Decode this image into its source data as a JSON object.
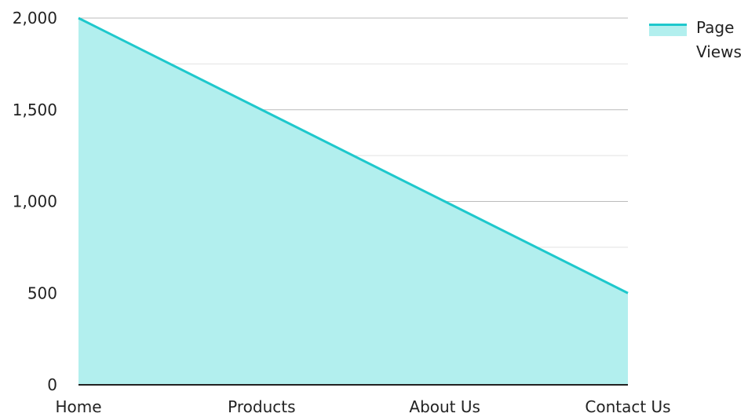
{
  "chart_data": {
    "type": "area",
    "categories": [
      "Home",
      "Products",
      "About Us",
      "Contact Us"
    ],
    "series": [
      {
        "name": "Page Views",
        "values": [
          2000,
          1500,
          1000,
          500
        ]
      }
    ],
    "y_ticks": [
      "0",
      "500",
      "1,000",
      "1,500",
      "2,000"
    ],
    "ylim": [
      0,
      2000
    ],
    "grid": true,
    "legend": {
      "position": "top-right",
      "label_lines": [
        "Page",
        "Views"
      ]
    },
    "colors": {
      "line": "#1ec8cc",
      "fill": "#b2efee",
      "grid_major": "#bbbbbb",
      "grid_minor": "#e2e2e2",
      "axis": "#222222"
    }
  }
}
